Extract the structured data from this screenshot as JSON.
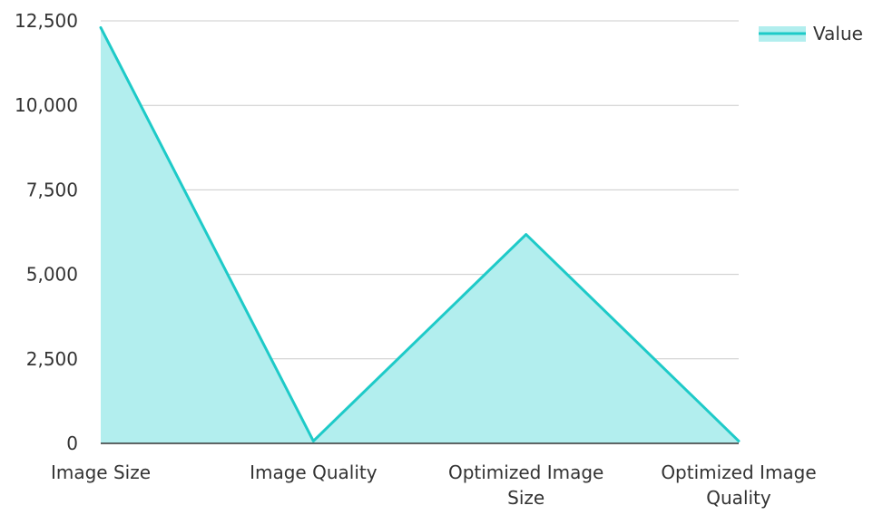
{
  "chart_data": {
    "type": "area",
    "categories": [
      [
        "Image Size"
      ],
      [
        "Image Quality"
      ],
      [
        "Optimized Image",
        "Size"
      ],
      [
        "Optimized Image",
        "Quality"
      ]
    ],
    "series": [
      {
        "name": "Value",
        "values": [
          12300,
          70,
          6180,
          70
        ]
      }
    ],
    "y_ticks": [
      "0",
      "2,500",
      "5,000",
      "7,500",
      "10,000",
      "12,500"
    ],
    "ylim": [
      0,
      12500
    ],
    "grid": true,
    "legend_position": "top-right",
    "colors": {
      "line": "#1ecac8",
      "fill": "#b2eeee",
      "grid": "#cccccc",
      "axis": "#333333",
      "text": "#333333"
    }
  }
}
